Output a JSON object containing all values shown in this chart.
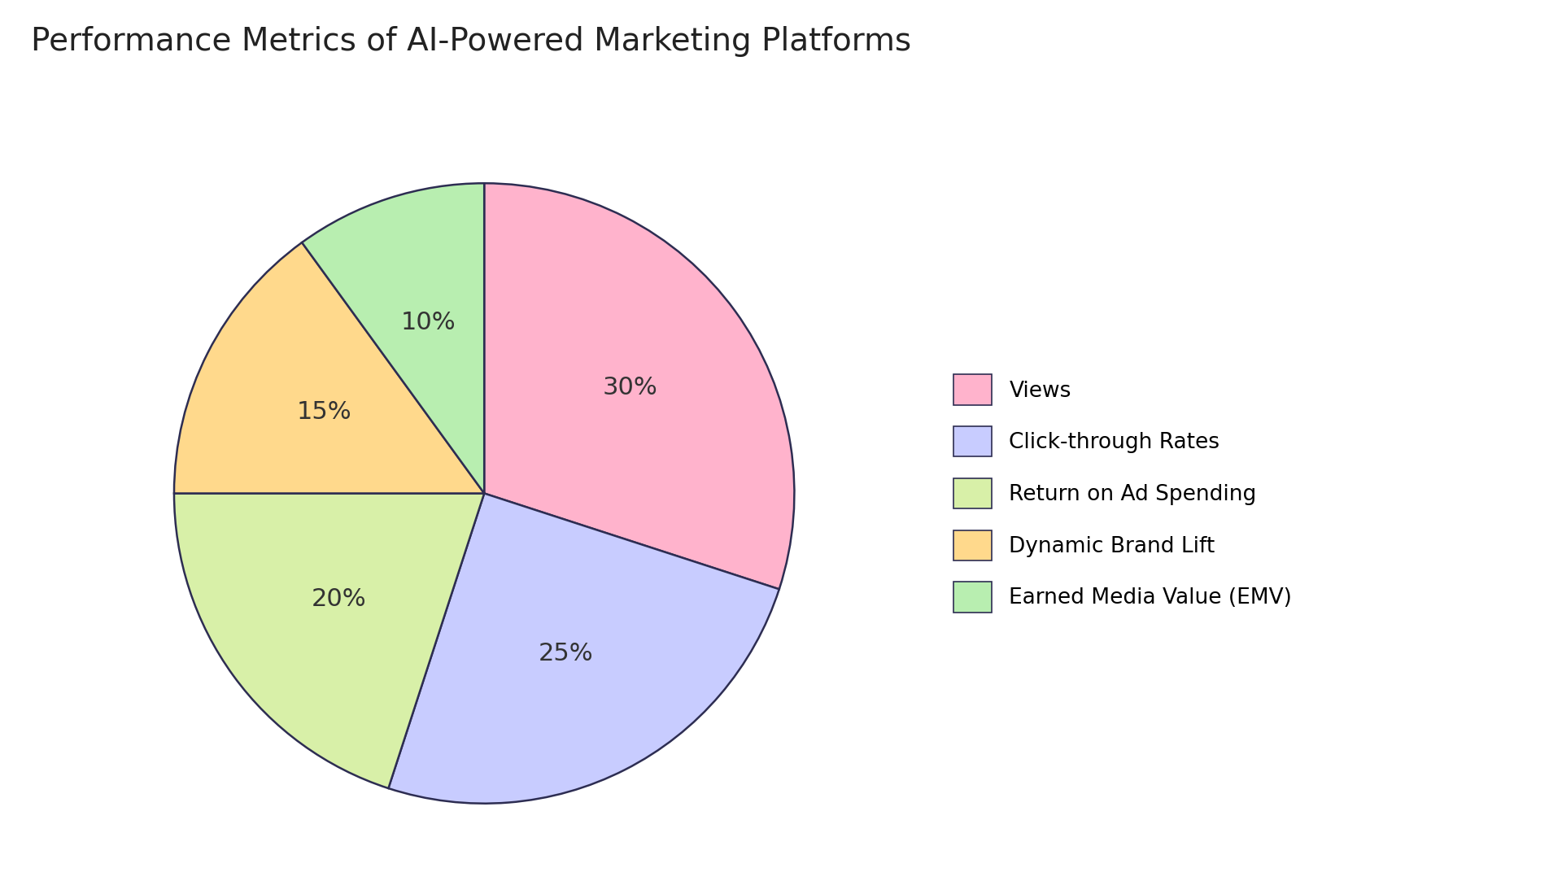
{
  "title": "Performance Metrics of AI-Powered Marketing Platforms",
  "labels": [
    "Views",
    "Click-through Rates",
    "Return on Ad Spending",
    "Dynamic Brand Lift",
    "Earned Media Value (EMV)"
  ],
  "values": [
    30,
    25,
    20,
    15,
    10
  ],
  "colors": [
    "#FFB3CC",
    "#C8CCFF",
    "#D8F0A8",
    "#FFD98C",
    "#B8EEB0"
  ],
  "edge_color": "#2d2d52",
  "pct_labels": [
    "30%",
    "25%",
    "20%",
    "15%",
    "10%"
  ],
  "title_fontsize": 28,
  "pct_fontsize": 22,
  "legend_fontsize": 19,
  "background_color": "#ffffff",
  "startangle": 90
}
